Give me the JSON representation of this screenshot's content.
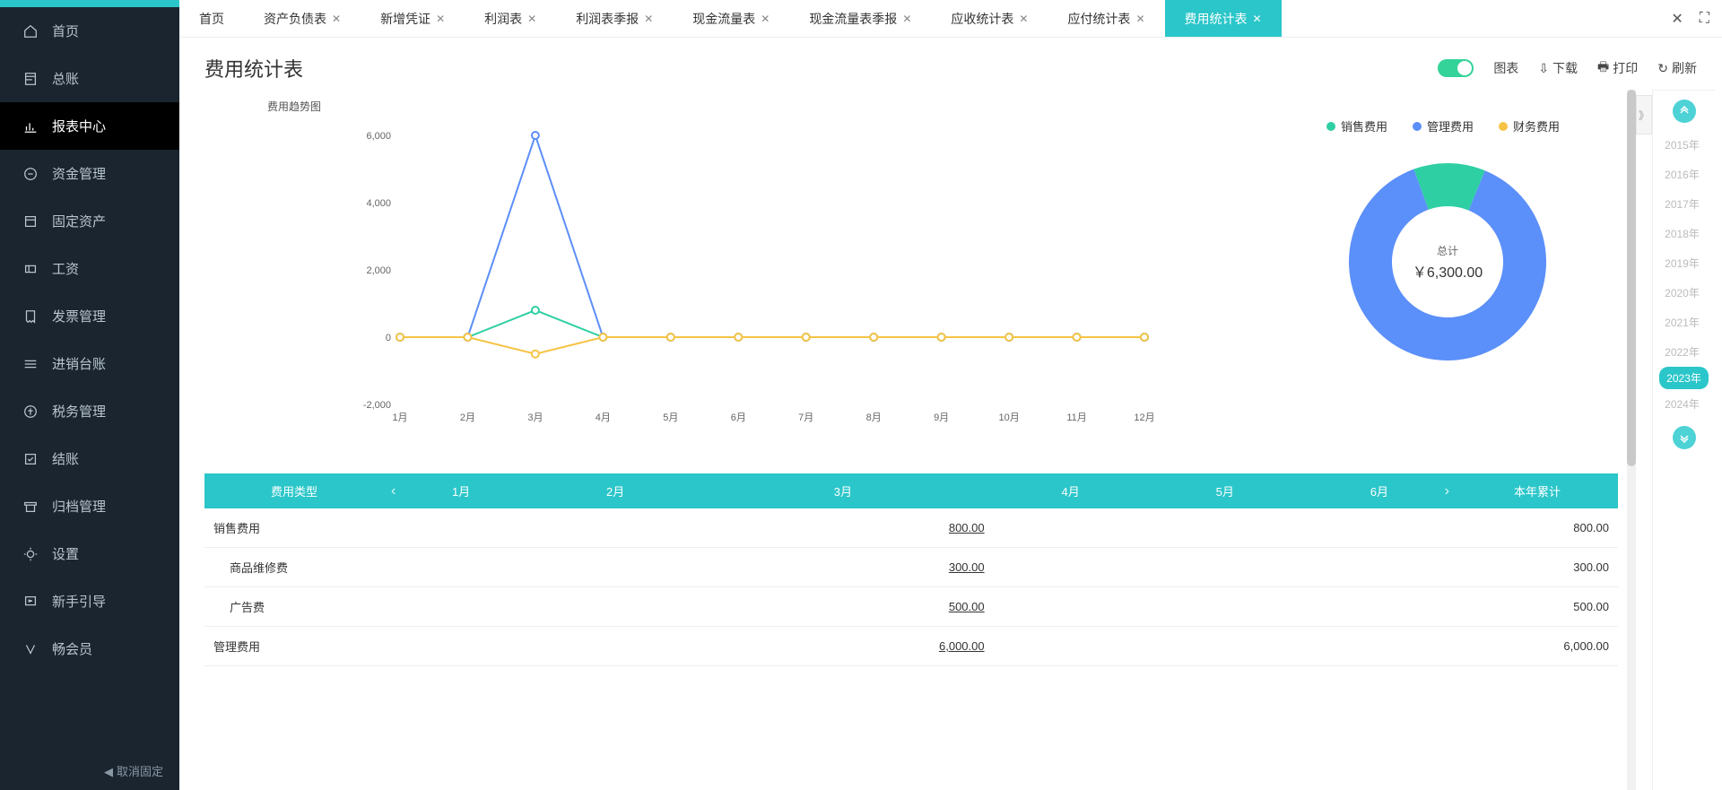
{
  "sidebar": {
    "items": [
      {
        "label": "首页",
        "icon": "home"
      },
      {
        "label": "总账",
        "icon": "ledger"
      },
      {
        "label": "报表中心",
        "icon": "chart",
        "active": true
      },
      {
        "label": "资金管理",
        "icon": "money"
      },
      {
        "label": "固定资产",
        "icon": "asset"
      },
      {
        "label": "工资",
        "icon": "salary"
      },
      {
        "label": "发票管理",
        "icon": "invoice"
      },
      {
        "label": "进销台账",
        "icon": "stock"
      },
      {
        "label": "税务管理",
        "icon": "tax"
      },
      {
        "label": "结账",
        "icon": "close"
      },
      {
        "label": "归档管理",
        "icon": "archive"
      },
      {
        "label": "设置",
        "icon": "gear"
      },
      {
        "label": "新手引导",
        "icon": "guide"
      },
      {
        "label": "畅会员",
        "icon": "vip"
      }
    ],
    "footer": "取消固定"
  },
  "tabs": [
    {
      "label": "首页",
      "closable": false
    },
    {
      "label": "资产负债表",
      "closable": true
    },
    {
      "label": "新增凭证",
      "closable": true
    },
    {
      "label": "利润表",
      "closable": true
    },
    {
      "label": "利润表季报",
      "closable": true
    },
    {
      "label": "现金流量表",
      "closable": true
    },
    {
      "label": "现金流量表季报",
      "closable": true
    },
    {
      "label": "应收统计表",
      "closable": true
    },
    {
      "label": "应付统计表",
      "closable": true
    },
    {
      "label": "费用统计表",
      "closable": true,
      "active": true
    }
  ],
  "page": {
    "title": "费用统计表",
    "toggle_label": "图表",
    "download": "下载",
    "print": "打印",
    "refresh": "刷新"
  },
  "chart": {
    "title": "费用趋势图",
    "type": "line",
    "x_labels": [
      "1月",
      "2月",
      "3月",
      "4月",
      "5月",
      "6月",
      "7月",
      "8月",
      "9月",
      "10月",
      "11月",
      "12月"
    ],
    "y_ticks": [
      -2000,
      0,
      2000,
      4000,
      6000
    ],
    "y_tick_labels": [
      "-2,000",
      "0",
      "2,000",
      "4,000",
      "6,000"
    ],
    "ylim": [
      -2000,
      6000
    ],
    "series": [
      {
        "name": "销售费用",
        "color": "#2ecfa3",
        "values": [
          0,
          0,
          800,
          0,
          0,
          0,
          0,
          0,
          0,
          0,
          0,
          0
        ]
      },
      {
        "name": "管理费用",
        "color": "#5b8ff9",
        "values": [
          0,
          0,
          6000,
          0,
          0,
          0,
          0,
          0,
          0,
          0,
          0,
          0
        ]
      },
      {
        "name": "财务费用",
        "color": "#f6c445",
        "values": [
          0,
          0,
          -500,
          0,
          0,
          0,
          0,
          0,
          0,
          0,
          0,
          0
        ]
      }
    ],
    "plot_background": "#ffffff",
    "axis_color": "#888888",
    "marker_radius": 4
  },
  "donut": {
    "center_label": "总计",
    "center_value": "￥6,300.00",
    "slices": [
      {
        "name": "销售费用",
        "value": 800,
        "color": "#2ecfa3"
      },
      {
        "name": "管理费用",
        "value": 6000,
        "color": "#5b8ff9"
      },
      {
        "name": "财务费用",
        "value": -500,
        "color": "#f6c445"
      }
    ],
    "inner_radius": 62,
    "outer_radius": 110,
    "background": "#ffffff"
  },
  "years": {
    "list": [
      "2015年",
      "2016年",
      "2017年",
      "2018年",
      "2019年",
      "2020年",
      "2021年",
      "2022年",
      "2023年",
      "2024年"
    ],
    "active": "2023年"
  },
  "table": {
    "header_type": "费用类型",
    "months": [
      "1月",
      "2月",
      "3月",
      "4月",
      "5月",
      "6月"
    ],
    "total_label": "本年累计",
    "rows": [
      {
        "label": "销售费用",
        "indent": 0,
        "cells": [
          "",
          "",
          "800.00",
          "",
          "",
          ""
        ],
        "underline": [
          false,
          false,
          true,
          false,
          false,
          false
        ],
        "total": "800.00"
      },
      {
        "label": "商品维修费",
        "indent": 1,
        "cells": [
          "",
          "",
          "300.00",
          "",
          "",
          ""
        ],
        "underline": [
          false,
          false,
          true,
          false,
          false,
          false
        ],
        "total": "300.00"
      },
      {
        "label": "广告费",
        "indent": 1,
        "cells": [
          "",
          "",
          "500.00",
          "",
          "",
          ""
        ],
        "underline": [
          false,
          false,
          true,
          false,
          false,
          false
        ],
        "total": "500.00"
      },
      {
        "label": "管理费用",
        "indent": 0,
        "cells": [
          "",
          "",
          "6,000.00",
          "",
          "",
          ""
        ],
        "underline": [
          false,
          false,
          true,
          false,
          false,
          false
        ],
        "total": "6,000.00"
      }
    ],
    "header_bg": "#2bc6c9",
    "header_color": "#ffffff"
  }
}
